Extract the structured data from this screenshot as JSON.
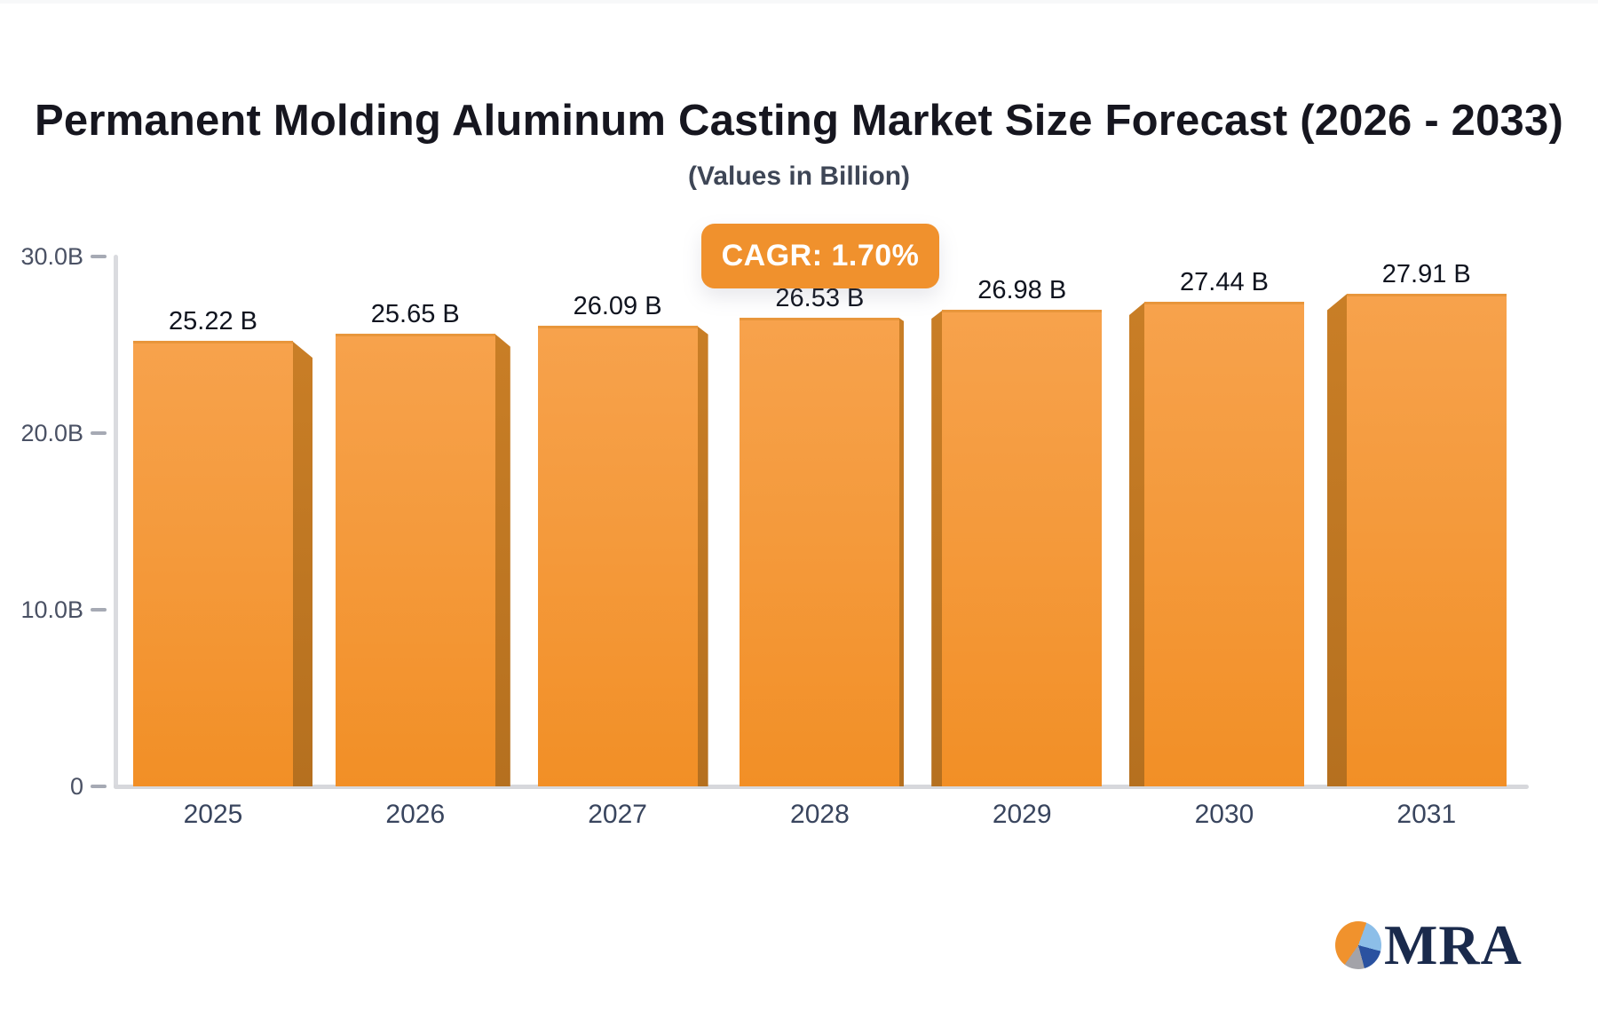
{
  "title": "Permanent Molding Aluminum Casting Market Size Forecast (2026 - 2033)",
  "subtitle": "(Values in Billion)",
  "badge": {
    "label": "CAGR: 1.70%"
  },
  "logo": {
    "text": "MRA",
    "icon": "pie-chart-icon"
  },
  "colors": {
    "bar_top": "#f7a24c",
    "bar_bottom": "#f28f26",
    "bar_side": "#be7420",
    "badge_bg": "#f0912d",
    "badge_text": "#ffffff",
    "axis_line": "#d8d9dd",
    "tick_text": "#4a5164",
    "category_text": "#39455e",
    "value_text": "#10141f",
    "logo_navy": "#1a2a4c"
  },
  "chart_data": {
    "type": "bar",
    "title": "Permanent Molding Aluminum Casting Market Size Forecast (2026 - 2033)",
    "subtitle": "(Values in Billion)",
    "categories": [
      "2025",
      "2026",
      "2027",
      "2028",
      "2029",
      "2030",
      "2031"
    ],
    "values": [
      25.22,
      25.65,
      26.09,
      26.53,
      26.98,
      27.44,
      27.91
    ],
    "value_labels": [
      "25.22 B",
      "25.65 B",
      "26.09 B",
      "26.53 B",
      "26.98 B",
      "27.44 B",
      "27.91 B"
    ],
    "xlabel": "",
    "ylabel": "",
    "ylim": [
      0,
      30
    ],
    "yticks": [
      {
        "value": 0,
        "label": "0"
      },
      {
        "value": 10,
        "label": "10.0B"
      },
      {
        "value": 20,
        "label": "20.0B"
      },
      {
        "value": 30,
        "label": "30.0B"
      }
    ],
    "grid": false,
    "legend": false,
    "annotation": "CAGR: 1.70%",
    "style": "3d-bars, perspective toward center"
  }
}
